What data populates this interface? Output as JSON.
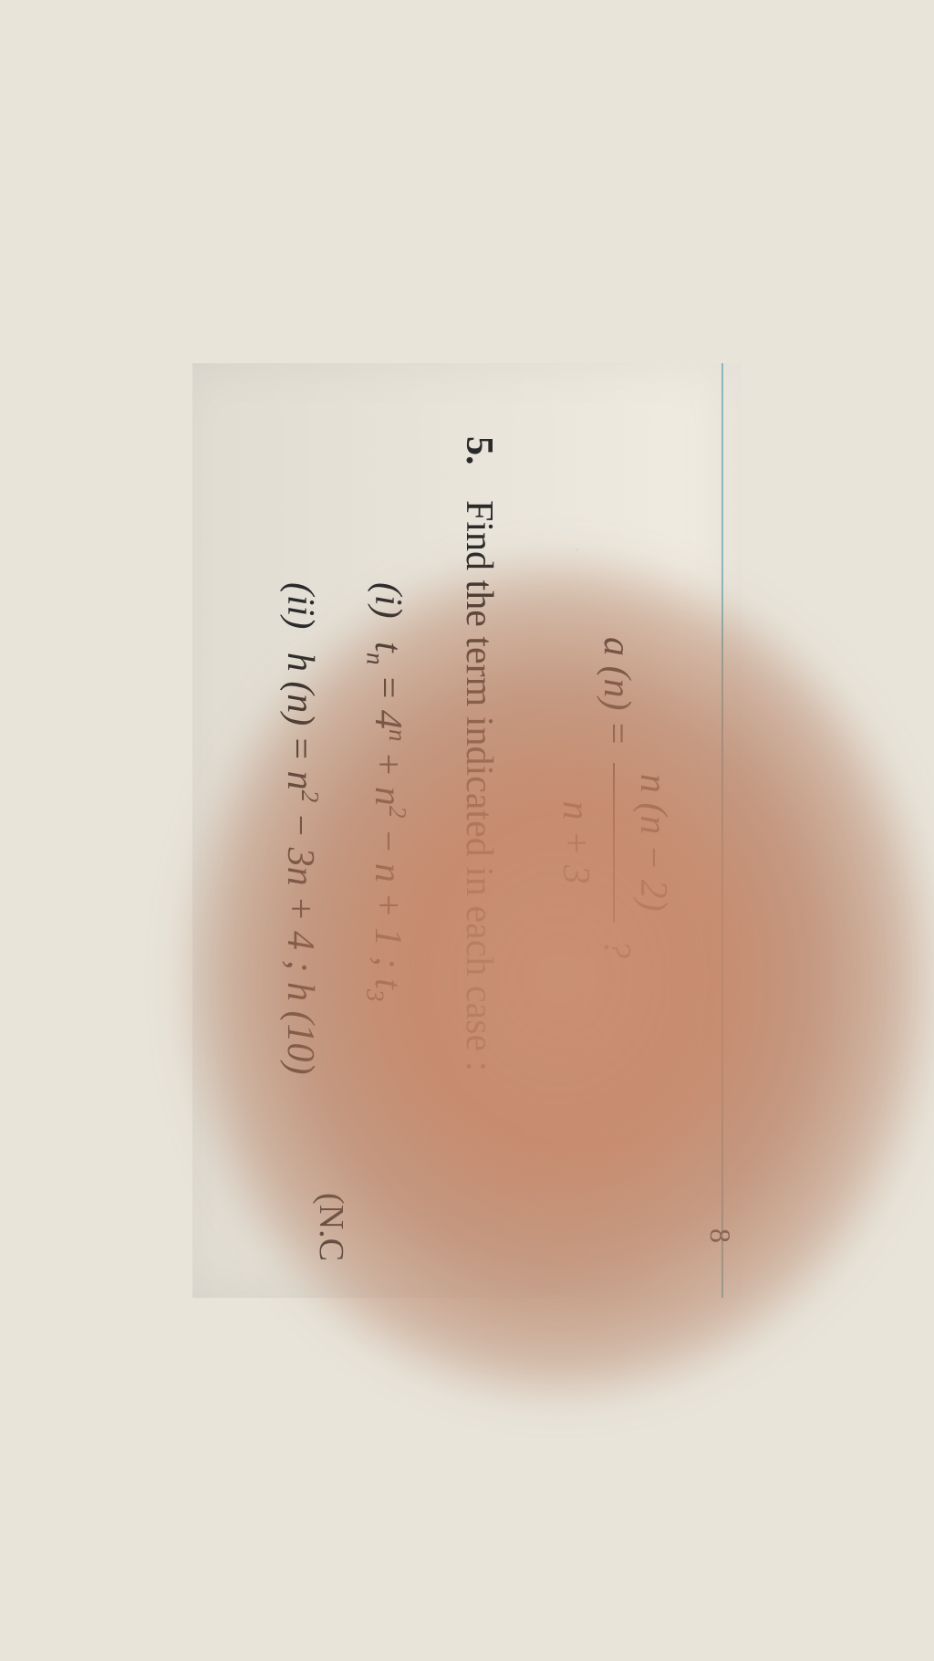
{
  "page": {
    "background_color": "#e8e4da",
    "text_color": "#2a2a2a",
    "rule_color": "#4a9ba8",
    "font_family": "Times New Roman",
    "base_fontsize": 42
  },
  "overlay": {
    "finger_present": true,
    "finger_color": "rgba(200,140,110,0.95)"
  },
  "content": {
    "top_formula": {
      "lhs": "a (n)",
      "equals": "=",
      "numerator": "n (n − 2)",
      "denominator": "n + 3",
      "trailing": "?"
    },
    "question": {
      "number": "5.",
      "text": "Find the term indicated in each case :"
    },
    "items": [
      {
        "label": "(i)",
        "formula_prefix": "t",
        "formula_sub1": "n",
        "formula_eq": " = 4",
        "formula_sup": "n",
        "formula_mid": " + n",
        "formula_sup2": "2",
        "formula_tail": " − n + 1 ; t",
        "formula_sub2": "3"
      },
      {
        "label": "(ii)",
        "formula_prefix": "h (n) = n",
        "formula_sup": "2",
        "formula_tail": " − 3n + 4 ; h (10)"
      }
    ],
    "margin_note": "(N.C",
    "page_top_marker": "8"
  }
}
